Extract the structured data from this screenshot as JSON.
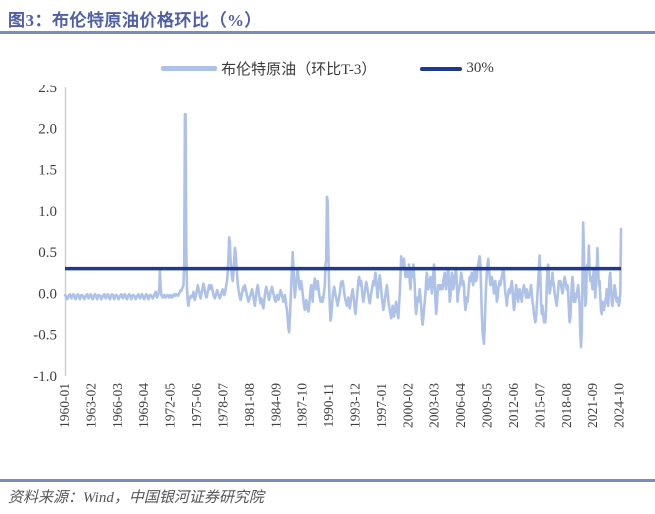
{
  "header": {
    "title": "图3：布伦特原油价格环比（%）"
  },
  "legend": {
    "series_label": "布伦特原油（环比T-3）",
    "threshold_label": "30%"
  },
  "footer": {
    "source": "资料来源：Wind，中国银河证券研究院"
  },
  "colors": {
    "series": "#AEC2E8",
    "threshold": "#1E3A8E",
    "title": "#4E5FA6",
    "separator": "#7D8CBC",
    "tick_text": "#3F3F3F",
    "spine": "#D0D0D0"
  },
  "chart_data": {
    "type": "line",
    "title": "布伦特原油价格环比（%）",
    "ylabel": "",
    "xlabel": "",
    "ylim": [
      -1.0,
      2.5
    ],
    "y_ticks": [
      2.5,
      2.0,
      1.5,
      1.0,
      0.5,
      0.0,
      -0.5,
      -1.0
    ],
    "x_tick_labels": [
      "1960-01",
      "1963-02",
      "1966-03",
      "1969-04",
      "1972-05",
      "1975-06",
      "1978-07",
      "1981-08",
      "1984-09",
      "1987-10",
      "1990-11",
      "1993-12",
      "1997-01",
      "2000-02",
      "2003-03",
      "2006-04",
      "2009-05",
      "2012-06",
      "2015-07",
      "2018-08",
      "2021-09",
      "2024-10"
    ],
    "x_tick_indices": [
      0,
      37,
      74,
      111,
      148,
      185,
      222,
      259,
      296,
      333,
      370,
      407,
      444,
      481,
      518,
      555,
      592,
      629,
      666,
      703,
      740,
      777
    ],
    "grid": false,
    "legend_position": "top",
    "threshold": {
      "name": "30%",
      "value": 0.3
    },
    "series": [
      {
        "name": "布伦特原油（环比T-3）",
        "start": "1960-01",
        "frequency": "monthly",
        "values": [
          -0.02,
          -0.03,
          -0.05,
          -0.07,
          -0.05,
          -0.03,
          -0.02,
          -0.01,
          -0.04,
          -0.06,
          -0.04,
          -0.02,
          -0.01,
          -0.03,
          -0.06,
          -0.07,
          -0.04,
          -0.02,
          -0.01,
          -0.02,
          -0.05,
          -0.07,
          -0.04,
          -0.02,
          -0.02,
          -0.03,
          -0.05,
          -0.07,
          -0.05,
          -0.03,
          -0.02,
          -0.01,
          -0.04,
          -0.06,
          -0.04,
          -0.02,
          -0.01,
          -0.03,
          -0.06,
          -0.07,
          -0.04,
          -0.02,
          -0.01,
          -0.02,
          -0.05,
          -0.07,
          -0.04,
          -0.02,
          -0.02,
          -0.03,
          -0.05,
          -0.07,
          -0.05,
          -0.03,
          -0.02,
          -0.01,
          -0.04,
          -0.06,
          -0.04,
          -0.02,
          -0.01,
          -0.03,
          -0.06,
          -0.07,
          -0.04,
          -0.02,
          -0.01,
          -0.02,
          -0.05,
          -0.07,
          -0.04,
          -0.02,
          -0.02,
          -0.03,
          -0.05,
          -0.07,
          -0.05,
          -0.03,
          -0.02,
          -0.01,
          -0.04,
          -0.06,
          -0.04,
          -0.02,
          -0.01,
          -0.03,
          -0.06,
          -0.07,
          -0.04,
          -0.02,
          -0.01,
          -0.02,
          -0.05,
          -0.07,
          -0.04,
          -0.02,
          -0.02,
          -0.03,
          -0.05,
          -0.07,
          -0.05,
          -0.03,
          -0.02,
          -0.01,
          -0.04,
          -0.06,
          -0.04,
          -0.02,
          -0.01,
          -0.03,
          -0.06,
          -0.07,
          -0.04,
          -0.02,
          -0.01,
          -0.02,
          -0.05,
          -0.07,
          -0.04,
          -0.02,
          -0.02,
          -0.03,
          -0.05,
          -0.06,
          -0.04,
          -0.02,
          0.0,
          0.02,
          -0.03,
          -0.05,
          -0.03,
          0.0,
          0.05,
          0.28,
          0.08,
          -0.02,
          -0.04,
          -0.05,
          -0.03,
          -0.02,
          -0.04,
          -0.05,
          -0.03,
          -0.02,
          -0.02,
          -0.04,
          -0.05,
          -0.04,
          -0.02,
          -0.03,
          -0.05,
          -0.04,
          -0.02,
          -0.01,
          -0.03,
          -0.02,
          -0.01,
          -0.02,
          -0.03,
          -0.02,
          0.0,
          0.02,
          0.04,
          0.03,
          0.05,
          0.08,
          0.1,
          0.35,
          2.17,
          2.17,
          0.5,
          0.05,
          -0.1,
          -0.15,
          -0.08,
          -0.05,
          -0.03,
          -0.05,
          -0.04,
          -0.02,
          0.02,
          -0.05,
          -0.08,
          -0.04,
          0.0,
          0.05,
          0.1,
          0.06,
          0.02,
          -0.03,
          -0.06,
          -0.02,
          0.03,
          0.08,
          0.12,
          0.08,
          0.03,
          -0.02,
          -0.05,
          -0.03,
          0.02,
          0.06,
          0.1,
          0.05,
          0.08,
          0.1,
          0.07,
          0.03,
          -0.02,
          -0.04,
          -0.06,
          -0.03,
          0.0,
          0.04,
          0.02,
          -0.02,
          -0.04,
          -0.06,
          -0.03,
          0.0,
          0.03,
          0.05,
          0.02,
          -0.02,
          0.0,
          0.05,
          0.1,
          0.15,
          0.25,
          0.45,
          0.68,
          0.62,
          0.4,
          0.3,
          0.2,
          0.15,
          0.25,
          0.4,
          0.55,
          0.5,
          0.35,
          0.25,
          0.12,
          0.05,
          0.0,
          -0.05,
          -0.08,
          -0.04,
          0.0,
          0.05,
          0.08,
          0.04,
          0.1,
          0.06,
          0.02,
          -0.03,
          -0.06,
          -0.1,
          -0.07,
          -0.04,
          -0.02,
          0.02,
          0.05,
          0.02,
          -0.05,
          -0.1,
          -0.15,
          -0.08,
          0.0,
          0.06,
          0.1,
          0.05,
          -0.02,
          -0.08,
          -0.12,
          -0.06,
          -0.1,
          -0.15,
          -0.18,
          -0.1,
          -0.02,
          0.04,
          0.08,
          0.04,
          0.0,
          -0.05,
          -0.08,
          -0.04,
          0.02,
          0.05,
          0.08,
          0.04,
          0.0,
          -0.04,
          -0.08,
          -0.1,
          -0.06,
          -0.02,
          -0.05,
          -0.08,
          -0.04,
          0.0,
          0.04,
          0.02,
          -0.03,
          -0.06,
          -0.1,
          -0.06,
          -0.02,
          -0.08,
          -0.15,
          -0.2,
          -0.3,
          -0.42,
          -0.47,
          -0.3,
          -0.1,
          0.1,
          0.3,
          0.5,
          0.35,
          0.1,
          -0.05,
          0.05,
          0.15,
          0.22,
          0.3,
          0.2,
          0.1,
          0.05,
          0.1,
          0.15,
          0.08,
          0.0,
          -0.08,
          -0.15,
          -0.2,
          -0.15,
          -0.08,
          -0.12,
          -0.18,
          -0.22,
          -0.15,
          -0.05,
          0.05,
          0.1,
          0.0,
          -0.1,
          0.05,
          0.12,
          0.18,
          0.12,
          0.05,
          0.1,
          0.15,
          0.08,
          0.0,
          -0.05,
          -0.1,
          -0.05,
          -0.08,
          -0.1,
          -0.05,
          0.02,
          0.1,
          0.35,
          0.4,
          1.17,
          1.12,
          0.5,
          0.1,
          -0.15,
          -0.33,
          -0.28,
          -0.15,
          -0.05,
          0.02,
          0.08,
          0.04,
          -0.02,
          -0.06,
          -0.1,
          -0.15,
          -0.1,
          -0.05,
          0.0,
          0.08,
          0.14,
          0.1,
          0.15,
          0.1,
          0.02,
          -0.04,
          -0.08,
          -0.12,
          -0.15,
          -0.1,
          -0.05,
          -0.12,
          -0.18,
          -0.12,
          -0.05,
          0.0,
          0.05,
          -0.02,
          -0.1,
          -0.2,
          -0.25,
          -0.15,
          -0.05,
          0.05,
          0.15,
          0.2,
          0.15,
          0.1,
          0.15,
          0.05,
          -0.05,
          -0.1,
          -0.05,
          0.02,
          0.08,
          0.14,
          0.1,
          0.04,
          -0.02,
          -0.08,
          -0.12,
          -0.06,
          0.0,
          0.05,
          0.1,
          0.15,
          0.1,
          0.18,
          0.25,
          0.15,
          0.05,
          -0.05,
          0.05,
          0.15,
          0.22,
          0.15,
          0.05,
          -0.05,
          -0.12,
          -0.2,
          -0.15,
          -0.08,
          -0.02,
          0.05,
          0.1,
          0.02,
          -0.08,
          -0.15,
          -0.2,
          -0.25,
          -0.3,
          -0.25,
          -0.15,
          -0.2,
          -0.28,
          -0.22,
          -0.15,
          -0.1,
          -0.18,
          -0.25,
          -0.3,
          -0.15,
          0.0,
          0.2,
          0.45,
          0.4,
          0.3,
          0.35,
          0.42,
          0.3,
          0.2,
          0.25,
          0.3,
          0.2,
          0.3,
          0.35,
          0.15,
          0.05,
          0.2,
          0.3,
          0.2,
          0.35,
          0.25,
          0.1,
          -0.15,
          -0.25,
          -0.15,
          -0.05,
          -0.1,
          -0.02,
          0.05,
          -0.05,
          -0.15,
          -0.3,
          -0.38,
          -0.3,
          -0.2,
          -0.1,
          0.0,
          0.15,
          0.25,
          0.15,
          0.05,
          0.1,
          0.15,
          0.2,
          0.1,
          0.0,
          0.1,
          0.25,
          0.35,
          0.2,
          -0.1,
          -0.25,
          -0.15,
          0.0,
          0.1,
          0.05,
          0.1,
          0.05,
          0.1,
          0.1,
          0.05,
          0.15,
          0.2,
          0.25,
          0.1,
          0.05,
          0.15,
          0.25,
          0.3,
          0.15,
          -0.1,
          -0.05,
          0.1,
          0.25,
          0.2,
          0.05,
          0.1,
          0.2,
          0.25,
          0.3,
          0.1,
          -0.1,
          0.0,
          0.05,
          0.1,
          0.15,
          0.25,
          0.2,
          0.1,
          0.15,
          0.1,
          -0.1,
          -0.2,
          -0.15,
          -0.05,
          -0.1,
          0.0,
          0.1,
          0.2,
          0.15,
          0.2,
          0.25,
          0.15,
          0.1,
          0.2,
          0.3,
          0.2,
          0.15,
          0.2,
          0.3,
          0.35,
          0.4,
          0.45,
          0.35,
          0.05,
          -0.25,
          -0.45,
          -0.55,
          -0.61,
          -0.4,
          -0.15,
          0.1,
          0.25,
          0.35,
          0.42,
          0.3,
          0.2,
          0.1,
          0.15,
          0.2,
          0.15,
          0.1,
          0.0,
          0.1,
          0.15,
          0.05,
          -0.1,
          -0.05,
          0.05,
          0.1,
          0.15,
          0.1,
          0.15,
          0.2,
          0.25,
          0.3,
          0.25,
          0.1,
          0.0,
          -0.05,
          -0.15,
          -0.05,
          0.0,
          0.05,
          0.0,
          0.05,
          0.1,
          0.15,
          0.05,
          -0.1,
          -0.2,
          -0.15,
          0.0,
          0.1,
          0.05,
          -0.05,
          -0.1,
          0.0,
          0.05,
          0.0,
          -0.05,
          -0.1,
          0.0,
          0.05,
          0.1,
          0.05,
          0.0,
          -0.05,
          0.05,
          -0.05,
          0.0,
          -0.05,
          0.0,
          0.05,
          0.1,
          0.0,
          -0.1,
          -0.15,
          -0.25,
          -0.3,
          -0.35,
          -0.3,
          -0.15,
          0.0,
          0.15,
          0.3,
          0.46,
          0.2,
          -0.1,
          -0.25,
          -0.15,
          -0.25,
          -0.35,
          -0.3,
          -0.35,
          -0.2,
          0.1,
          0.3,
          0.35,
          0.2,
          0.0,
          0.05,
          0.15,
          0.1,
          0.25,
          0.15,
          0.1,
          0.0,
          -0.05,
          -0.1,
          -0.15,
          -0.05,
          0.05,
          0.15,
          0.1,
          0.15,
          0.1,
          0.05,
          0.0,
          0.05,
          0.15,
          0.2,
          0.15,
          0.1,
          0.05,
          0.1,
          0.0,
          -0.2,
          -0.35,
          -0.3,
          -0.1,
          0.1,
          0.2,
          0.1,
          -0.1,
          -0.05,
          -0.1,
          0.0,
          -0.05,
          0.05,
          0.1,
          0.0,
          -0.15,
          -0.5,
          -0.65,
          -0.45,
          0.2,
          0.86,
          0.5,
          0.1,
          -0.15,
          -0.1,
          0.3,
          0.35,
          0.3,
          0.58,
          0.25,
          0.15,
          0.2,
          0.15,
          0.05,
          0.2,
          0.3,
          0.1,
          -0.05,
          0.2,
          0.3,
          0.55,
          0.3,
          0.1,
          0.15,
          -0.05,
          -0.2,
          -0.25,
          -0.1,
          -0.15,
          -0.2,
          -0.15,
          -0.1,
          -0.05,
          0.05,
          -0.1,
          -0.15,
          0.0,
          0.2,
          0.25,
          0.1,
          -0.1,
          -0.15,
          -0.05,
          0.0,
          0.1,
          0.05,
          -0.05,
          -0.1,
          -0.05,
          -0.1,
          -0.15,
          -0.1,
          0.0,
          0.78
        ]
      }
    ]
  }
}
